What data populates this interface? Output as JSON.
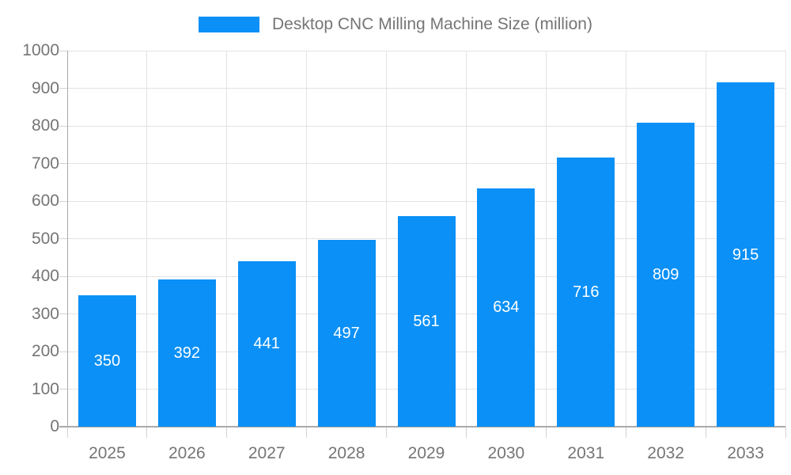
{
  "chart_data": {
    "type": "bar",
    "title": "Desktop CNC Milling Machine Size (million)",
    "categories": [
      "2025",
      "2026",
      "2027",
      "2028",
      "2029",
      "2030",
      "2031",
      "2032",
      "2033"
    ],
    "series": [
      {
        "name": "Desktop CNC Milling Machine Size (million)",
        "values": [
          350,
          392,
          441,
          497,
          561,
          634,
          716,
          809,
          915
        ]
      }
    ],
    "value_labels": [
      "350",
      "392",
      "441",
      "497",
      "561",
      "634",
      "716",
      "809",
      "915"
    ],
    "xlabel": "",
    "ylabel": "",
    "ylim": [
      0,
      1000
    ],
    "ytick_step": 100,
    "grid": true,
    "legend_position": "top-center",
    "colors": {
      "bar": "#0a90f6",
      "value_label": "#ffffff",
      "axis_text": "#757575",
      "gridline": "#e3e3e3",
      "axis_line": "#aaaaaa",
      "tick": "#d2d2d2",
      "background": "#ffffff"
    }
  }
}
